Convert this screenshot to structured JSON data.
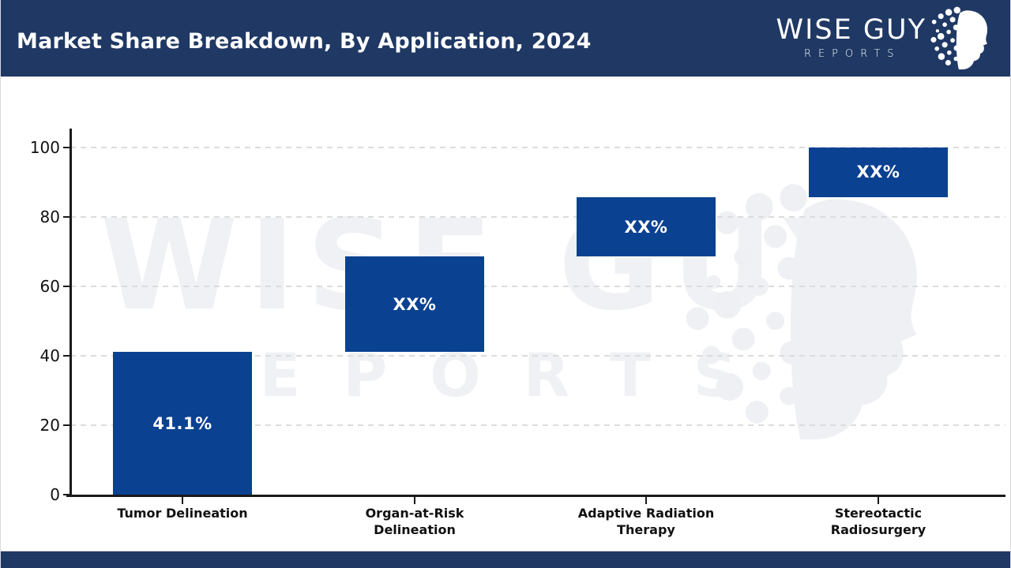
{
  "header": {
    "title": "Market Share Breakdown, By Application, 2024",
    "logo": {
      "line1": "WISE GUY",
      "line2": "REPORTS"
    }
  },
  "watermark": {
    "line1": "WISE GUY",
    "line2": "REPORTS"
  },
  "colors": {
    "banner_bg": "#1f3864",
    "bar_fill": "#0a4191",
    "bar_label_text": "#ffffff",
    "gridline": "#dcdcdc",
    "axis": "#1a1a1a",
    "watermark": "#f0f1f4"
  },
  "chart_data": {
    "type": "bar",
    "variant": "waterfall",
    "title": "Market Share Breakdown, By Application, 2024",
    "categories": [
      "Tumor Delineation",
      "Organ-at-Risk\nDelineation",
      "Adaptive Radiation\nTherapy",
      "Stereotactic\nRadiosurgery"
    ],
    "segments": [
      {
        "category": "Tumor Delineation",
        "start": 0,
        "end": 41.1,
        "value_label": "41.1%"
      },
      {
        "category": "Organ-at-Risk Delineation",
        "start": 41.1,
        "end": 68.6,
        "value_label": "XX%"
      },
      {
        "category": "Adaptive Radiation Therapy",
        "start": 68.6,
        "end": 85.7,
        "value_label": "XX%"
      },
      {
        "category": "Stereotactic Radiosurgery",
        "start": 85.7,
        "end": 100,
        "value_label": "XX%"
      }
    ],
    "y_ticks": [
      0,
      20,
      40,
      60,
      80,
      100
    ],
    "y_tick_labels": [
      "0",
      "20",
      "40",
      "60",
      "80",
      "100"
    ],
    "ylim": [
      0,
      105
    ],
    "grid": "dashed-horizontal",
    "legend": "none",
    "xlabel": "",
    "ylabel": ""
  }
}
